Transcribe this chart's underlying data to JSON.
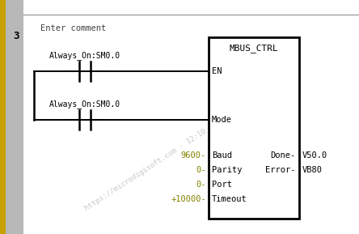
{
  "bg_color": "#d4d0c8",
  "canvas_bg": "#ffffff",
  "rung_number": "3",
  "comment": "Enter comment",
  "contact1_label": "Always_On:SM0.0",
  "contact2_label": "Always_On:SM0.0",
  "block_title": "MBUS_CTRL",
  "inputs": [
    "EN",
    "Mode",
    "Baud",
    "Parity",
    "Port",
    "Timeout"
  ],
  "input_values": [
    "",
    "",
    "9600",
    "0",
    "0",
    "+10000"
  ],
  "outputs": [
    "Done",
    "Error"
  ],
  "output_values": [
    "V50.0",
    "VB80"
  ],
  "value_color": "#808000",
  "watermark_text": "https://microdigisoft.com - 12:10",
  "line_color": "#000000",
  "text_color": "#000000",
  "gray_strip_color": "#c0c0c8",
  "yellow_strip_color": "#d4a000",
  "fig_width": 4.44,
  "fig_height": 2.89,
  "dpi": 100
}
